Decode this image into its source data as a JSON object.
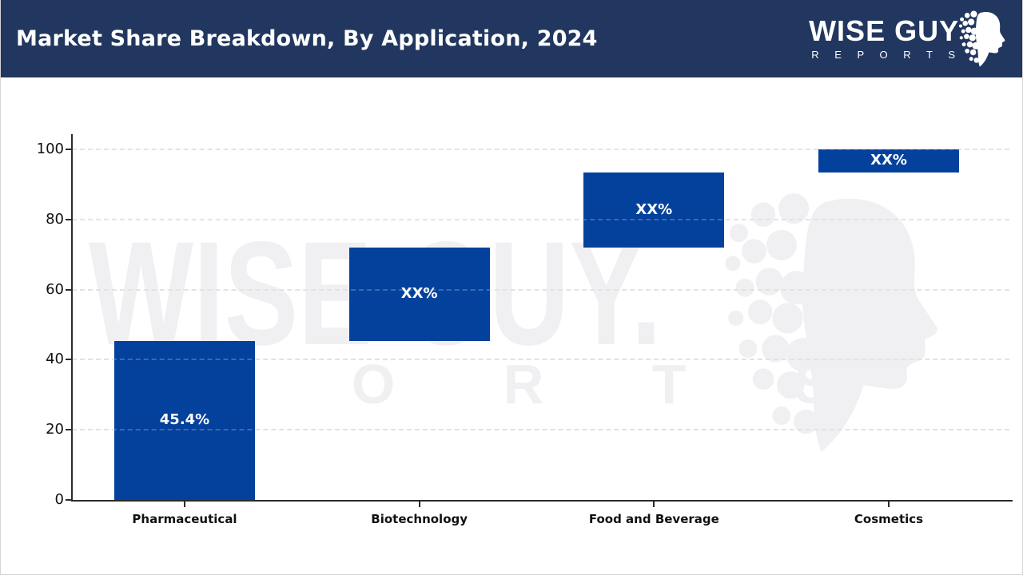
{
  "header": {
    "title": "Market Share Breakdown, By Application, 2024",
    "logo": {
      "line1": "WISE GUY",
      "line2": "R E P O R T S",
      "head_icon": "dotted-face-profile"
    }
  },
  "watermark": {
    "line1": "WISE GUY.",
    "line2": "P O R T S",
    "head_icon": "dotted-face-profile"
  },
  "chart_data": {
    "type": "bar",
    "subtype": "floating-waterfall",
    "title": "Market Share Breakdown, By Application, 2024",
    "categories": [
      "Pharmaceutical",
      "Biotechnology",
      "Food and Beverage",
      "Cosmetics"
    ],
    "series": [
      {
        "name": "Market share (%)",
        "segments": [
          {
            "category": "Pharmaceutical",
            "start": 0,
            "end": 45.4,
            "label": "45.4%"
          },
          {
            "category": "Biotechnology",
            "start": 45.4,
            "end": 72,
            "label": "XX%"
          },
          {
            "category": "Food and Beverage",
            "start": 72,
            "end": 93.4,
            "label": "XX%"
          },
          {
            "category": "Cosmetics",
            "start": 93.4,
            "end": 100,
            "label": "XX%"
          }
        ]
      }
    ],
    "xlabel": "",
    "ylabel": "",
    "yticks": [
      0,
      20,
      40,
      60,
      80,
      100
    ],
    "ylim": [
      0,
      104
    ],
    "grid": "horizontal-dashed",
    "legend": "none",
    "bar_color": "#04419c",
    "label_color": "#ffffff"
  },
  "colors": {
    "header_bg": "#22375f",
    "bar": "#04419c",
    "grid": "#dcdcdc",
    "axis": "#2b2b2b",
    "watermark": "#f0f0f3"
  }
}
